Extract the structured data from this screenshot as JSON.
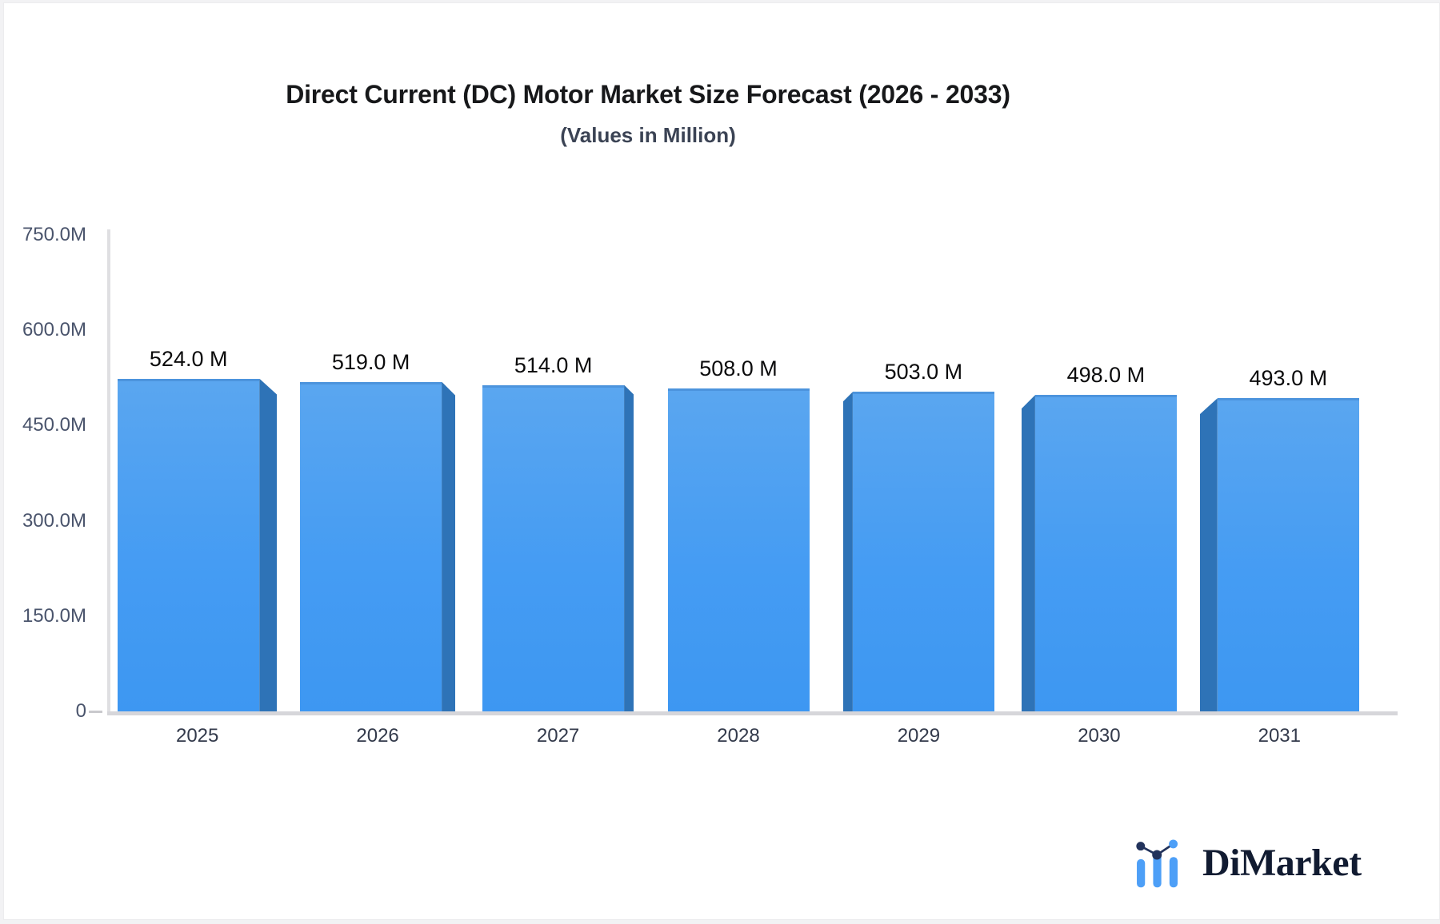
{
  "title": "Direct Current (DC) Motor Market Size Forecast (2026 - 2033)",
  "subtitle": "(Values in Million)",
  "chart_data": {
    "type": "bar",
    "categories": [
      "2025",
      "2026",
      "2027",
      "2028",
      "2029",
      "2030",
      "2031"
    ],
    "values": [
      524,
      519,
      514,
      508,
      503,
      498,
      493
    ],
    "bar_labels": [
      "524.0 M",
      "519.0 M",
      "514.0 M",
      "508.0 M",
      "503.0 M",
      "498.0 M",
      "493.0 M"
    ],
    "title": "Direct Current (DC) Motor Market Size Forecast (2026 - 2033)",
    "subtitle": "(Values in Million)",
    "xlabel": "",
    "ylabel": "",
    "ylim": [
      0,
      750
    ],
    "yticks": [
      {
        "label": "750.0M",
        "value": 750
      },
      {
        "label": "600.0M",
        "value": 600
      },
      {
        "label": "450.0M",
        "value": 450
      },
      {
        "label": "300.0M",
        "value": 300
      },
      {
        "label": "150.0M",
        "value": 150
      },
      {
        "label": "0",
        "value": 0
      }
    ],
    "grid": false,
    "legend": "none",
    "style_3d": true,
    "colors": {
      "bar_top": "#5aa6f0",
      "bar_bottom": "#3d97f2",
      "bar_top_edge": "#4c94dd",
      "bar_side_face": "#2e73b7",
      "axis_line": "#d6d6da"
    }
  },
  "branding": {
    "logo_text": "DiMarket",
    "logo_icon": "bar-line-chart-icon",
    "logo_bar_color": "#4d9ff7",
    "logo_dot_color": "#22335c",
    "logo_text_color": "#111b31"
  }
}
